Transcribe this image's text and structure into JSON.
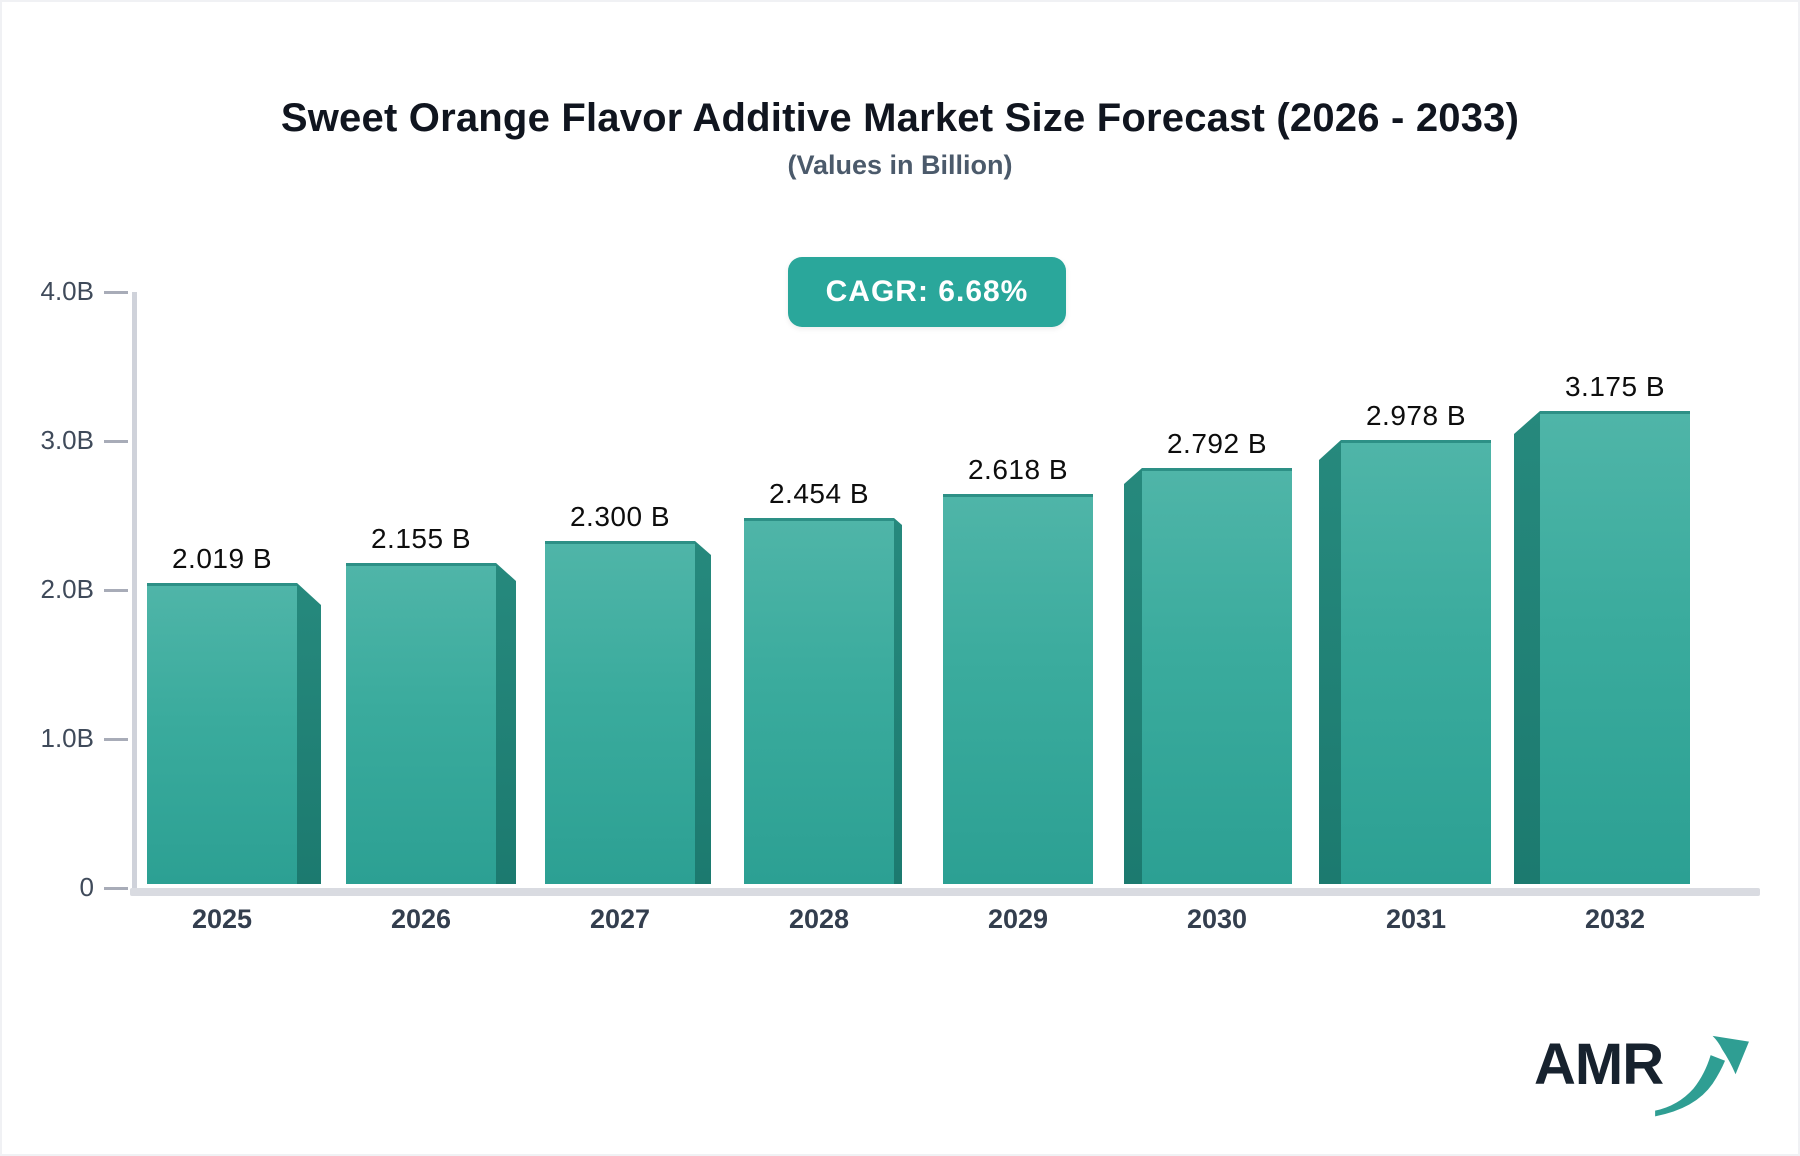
{
  "title": "Sweet Orange Flavor Additive Market Size Forecast (2026 - 2033)",
  "subtitle": "(Values in Billion)",
  "cagr_badge": "CAGR: 6.68%",
  "logo": {
    "text": "AMR",
    "icon": "trend-up-arrow-icon"
  },
  "chart_data": {
    "type": "bar",
    "title": "Sweet Orange Flavor Additive Market Size Forecast (2026 - 2033)",
    "subtitle": "(Values in Billion)",
    "unit": "Billion",
    "cagr": "6.68%",
    "categories": [
      "2025",
      "2026",
      "2027",
      "2028",
      "2029",
      "2030",
      "2031",
      "2032"
    ],
    "values": [
      2.019,
      2.155,
      2.3,
      2.454,
      2.618,
      2.792,
      2.978,
      3.175
    ],
    "bar_labels": [
      "2.019 B",
      "2.155 B",
      "2.300 B",
      "2.454 B",
      "2.618 B",
      "2.792 B",
      "2.978 B",
      "3.175 B"
    ],
    "ylim": [
      0,
      4
    ],
    "yticks": [
      {
        "label": "0",
        "value": 0
      },
      {
        "label": "1.0B",
        "value": 1
      },
      {
        "label": "2.0B",
        "value": 2
      },
      {
        "label": "3.0B",
        "value": 3
      },
      {
        "label": "4.0B",
        "value": 4
      }
    ],
    "grid": false,
    "legend": false,
    "bar_color": "#35a898",
    "bar_side_color": "#1f8175",
    "badge_color": "#2aa79b"
  }
}
